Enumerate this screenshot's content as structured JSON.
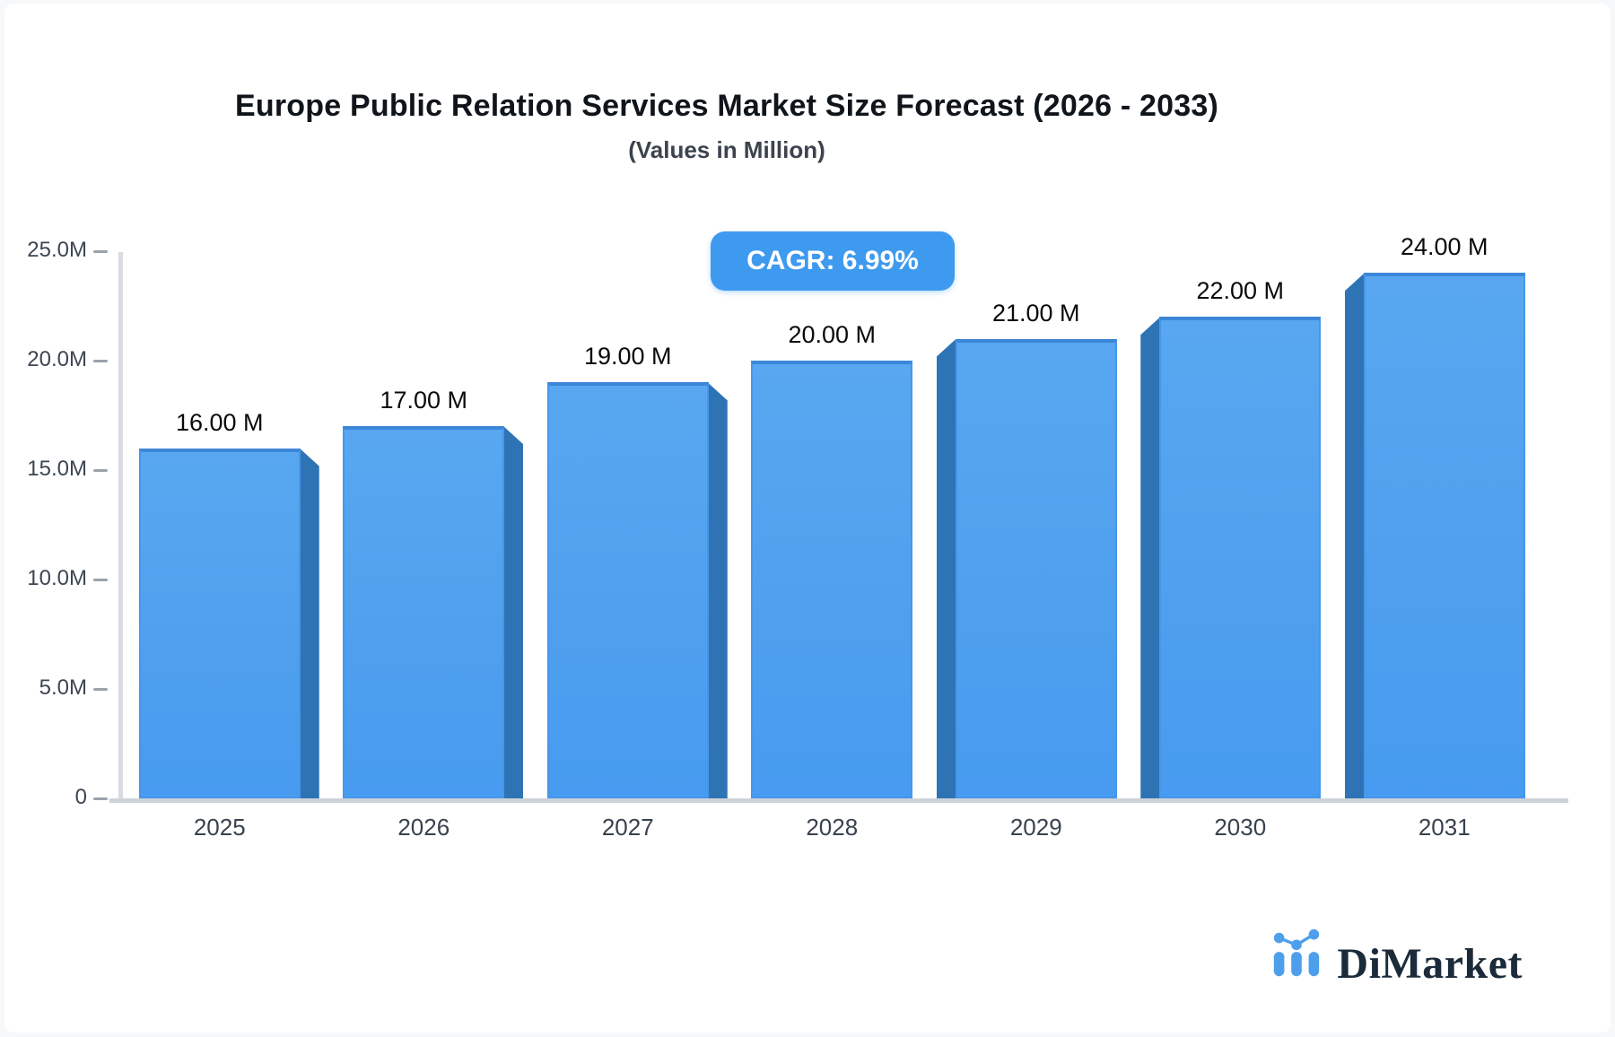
{
  "title": "Europe Public Relation Services Market Size Forecast (2026 - 2033)",
  "subtitle": "(Values in Million)",
  "badge": {
    "label": "CAGR: 6.99%",
    "bg_color": "#3e9aef",
    "text_color": "#ffffff"
  },
  "chart_data": {
    "type": "bar",
    "title": "Europe Public Relation Services Market Size Forecast (2026 - 2033)",
    "subtitle": "(Values in Million)",
    "unit": "Million",
    "categories": [
      "2025",
      "2026",
      "2027",
      "2028",
      "2029",
      "2030",
      "2031"
    ],
    "values": [
      16,
      17,
      19,
      20,
      21,
      22,
      24
    ],
    "bar_labels": [
      "16.00 M",
      "17.00 M",
      "19.00 M",
      "20.00 M",
      "21.00 M",
      "22.00 M",
      "24.00 M"
    ],
    "y_ticks": [
      {
        "value": 0,
        "label": "0"
      },
      {
        "value": 5,
        "label": "5.0M"
      },
      {
        "value": 10,
        "label": "10.0M"
      },
      {
        "value": 15,
        "label": "15.0M"
      },
      {
        "value": 20,
        "label": "20.0M"
      },
      {
        "value": 25,
        "label": "25.0M"
      }
    ],
    "ylim": [
      0,
      25
    ],
    "grid": false,
    "legend": false,
    "bar_color": "#54a4ef",
    "bar_side_color": "#2e74b5",
    "bar_top_edge_color": "#3c86d9"
  },
  "logo": {
    "text": "DiMarket",
    "icon": "bar-chart-logo-icon",
    "icon_color": "#4d9fec",
    "text_color": "#1c2b3a"
  }
}
